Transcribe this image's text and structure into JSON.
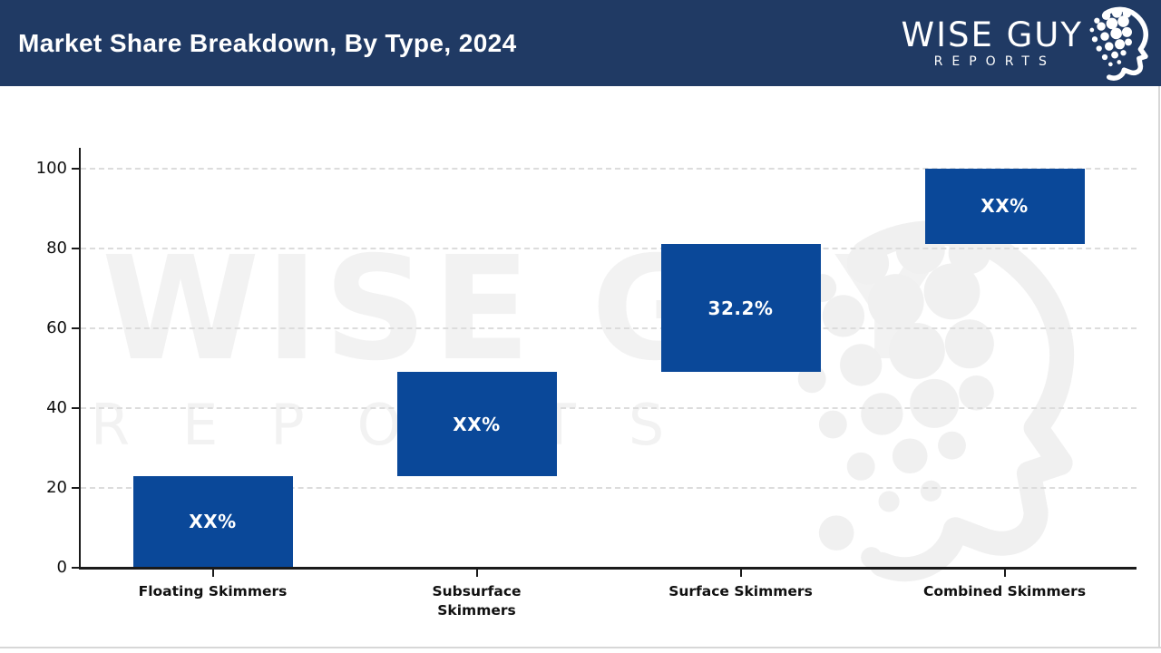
{
  "header": {
    "title": "Market Share Breakdown, By Type, 2024",
    "logo_line1": "WISE GUY",
    "logo_line2": "REPORTS"
  },
  "watermark": {
    "line1": "WISE GUY",
    "line2": "REPORTS"
  },
  "icons": {
    "logo_head": "dotted-head-profile",
    "watermark_head": "dotted-head-profile"
  },
  "colors": {
    "header_bg": "#203a64",
    "bar": "#0a4899",
    "grid": "#dcdcdc",
    "axis": "#1a1a1a",
    "bar_label": "#ffffff",
    "watermark": "#f2f2f2"
  },
  "chart_data": {
    "type": "bar",
    "subtype": "waterfall",
    "title": "Market Share Breakdown, By Type, 2024",
    "categories": [
      "Floating Skimmers",
      "Subsurface Skimmers",
      "Surface Skimmers",
      "Combined Skimmers"
    ],
    "categories_display": [
      "Floating Skimmers",
      "Subsurface\nSkimmers",
      "Surface Skimmers",
      "Combined Skimmers"
    ],
    "segments": [
      {
        "category": "Floating Skimmers",
        "start": 0,
        "end": 23,
        "label": "XX%"
      },
      {
        "category": "Subsurface Skimmers",
        "start": 23,
        "end": 49,
        "label": "XX%"
      },
      {
        "category": "Surface Skimmers",
        "start": 49,
        "end": 81.2,
        "label": "32.2%"
      },
      {
        "category": "Combined Skimmers",
        "start": 81.2,
        "end": 100,
        "label": "XX%"
      }
    ],
    "yticks": [
      0,
      20,
      40,
      60,
      80,
      100
    ],
    "ylim": [
      0,
      105
    ],
    "xlabel": "",
    "ylabel": "",
    "grid": "horizontal-dashed",
    "legend": "none"
  }
}
